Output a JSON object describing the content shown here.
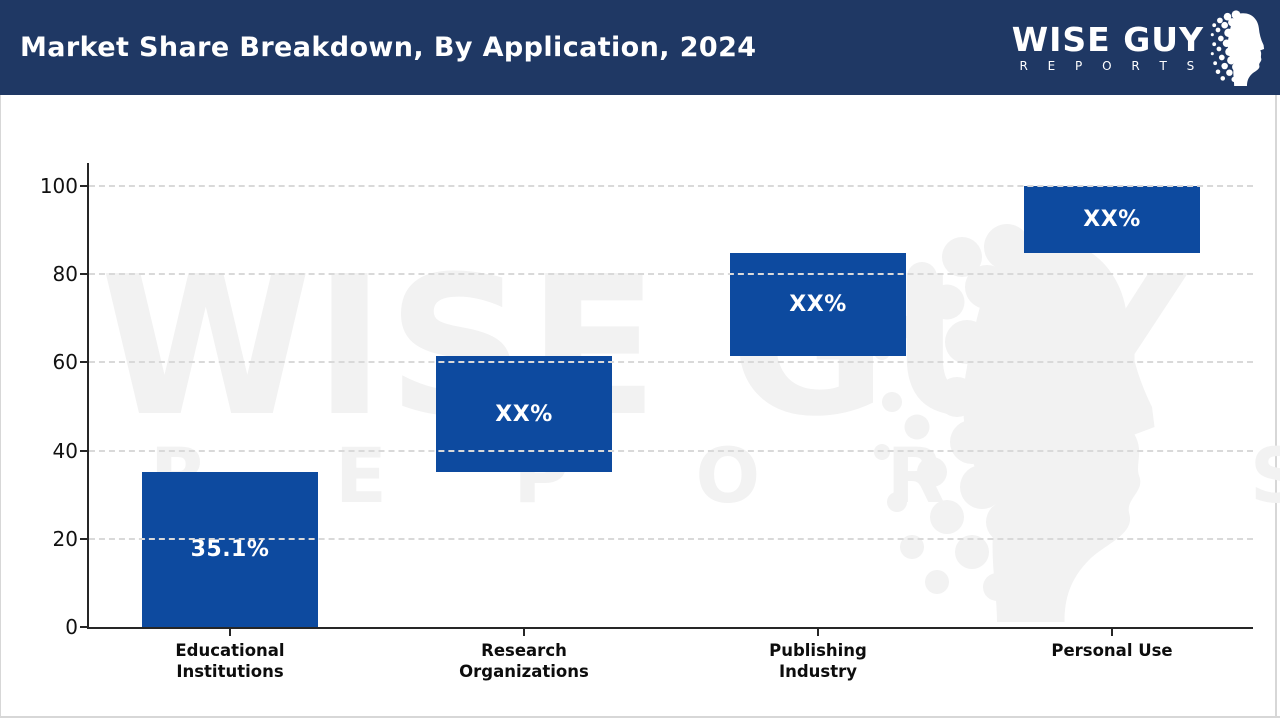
{
  "header": {
    "title": "Market Share Breakdown, By Application, 2024",
    "logo": {
      "main": "WISE GUY",
      "sub": "R E P O R T S"
    }
  },
  "watermark": {
    "main": "WISE GUY",
    "sub": "R E P O R T S"
  },
  "chart_data": {
    "type": "bar",
    "subtype": "floating-waterfall",
    "title": "Market Share Breakdown, By Application, 2024",
    "categories": [
      "Educational Institutions",
      "Research Organizations",
      "Publishing Industry",
      "Personal Use"
    ],
    "bars": [
      {
        "category": "Educational Institutions",
        "lines": [
          "Educational",
          "Institutions"
        ],
        "label": "35.1%",
        "range": [
          0,
          35.1
        ]
      },
      {
        "category": "Research Organizations",
        "lines": [
          "Research",
          "Organizations"
        ],
        "label": "XX%",
        "range": [
          35.1,
          61.4
        ]
      },
      {
        "category": "Publishing Industry",
        "lines": [
          "Publishing",
          "Industry"
        ],
        "label": "XX%",
        "range": [
          61.4,
          84.8
        ]
      },
      {
        "category": "Personal Use",
        "lines": [
          "Personal Use"
        ],
        "label": "XX%",
        "range": [
          84.8,
          100
        ]
      }
    ],
    "yticks": [
      0,
      20,
      40,
      60,
      80,
      100
    ],
    "ylim": [
      0,
      105
    ],
    "xlabel": "",
    "ylabel": "",
    "grid": "horizontal dashed",
    "legend": "none",
    "colors": {
      "bar": "#0d4a9f",
      "bar_label": "#ffffff",
      "header_bg": "#1f3864",
      "axis": "#262626",
      "grid": "#d9d9d9",
      "watermark": "#f2f2f2"
    }
  }
}
